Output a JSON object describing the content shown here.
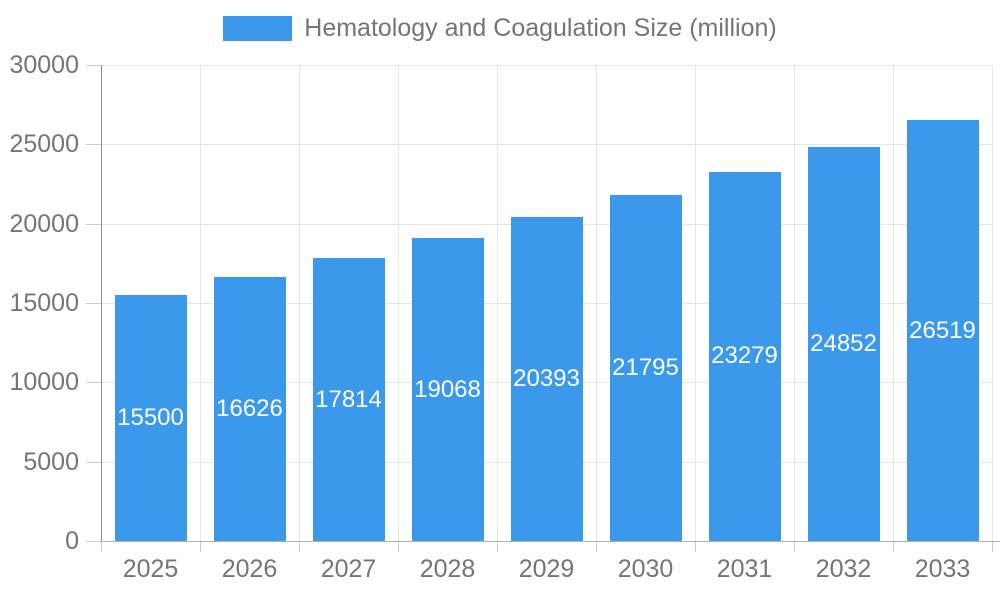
{
  "legend": {
    "label": "Hematology and Coagulation Size (million)"
  },
  "chart_data": {
    "type": "bar",
    "title": "Hematology and Coagulation Size (million)",
    "categories": [
      "2025",
      "2026",
      "2027",
      "2028",
      "2029",
      "2030",
      "2031",
      "2032",
      "2033"
    ],
    "series": [
      {
        "name": "Hematology and Coagulation Size (million)",
        "values": [
          15500,
          16626,
          17814,
          19068,
          20393,
          21795,
          23279,
          24852,
          26519
        ]
      }
    ],
    "bar_value_labels": [
      "15500",
      "16626",
      "17814",
      "19068",
      "20393",
      "21795",
      "23279",
      "24852",
      "26519"
    ],
    "xlabel": "",
    "ylabel": "",
    "ylim": [
      0,
      30000
    ],
    "yticks": [
      0,
      5000,
      10000,
      15000,
      20000,
      25000,
      30000
    ],
    "ytick_labels": [
      "0",
      "5000",
      "10000",
      "15000",
      "20000",
      "25000",
      "30000"
    ],
    "grid": true,
    "legend_position": "top-center"
  },
  "colors": {
    "bar": "#3B99EC",
    "bar_value_text": "#ffffff",
    "grid": "#e6e6e6",
    "y_axis": "#8f8f8f",
    "x_axis": "#b0b0b0",
    "tick": "#cccccc",
    "tick_text": "#757575"
  }
}
